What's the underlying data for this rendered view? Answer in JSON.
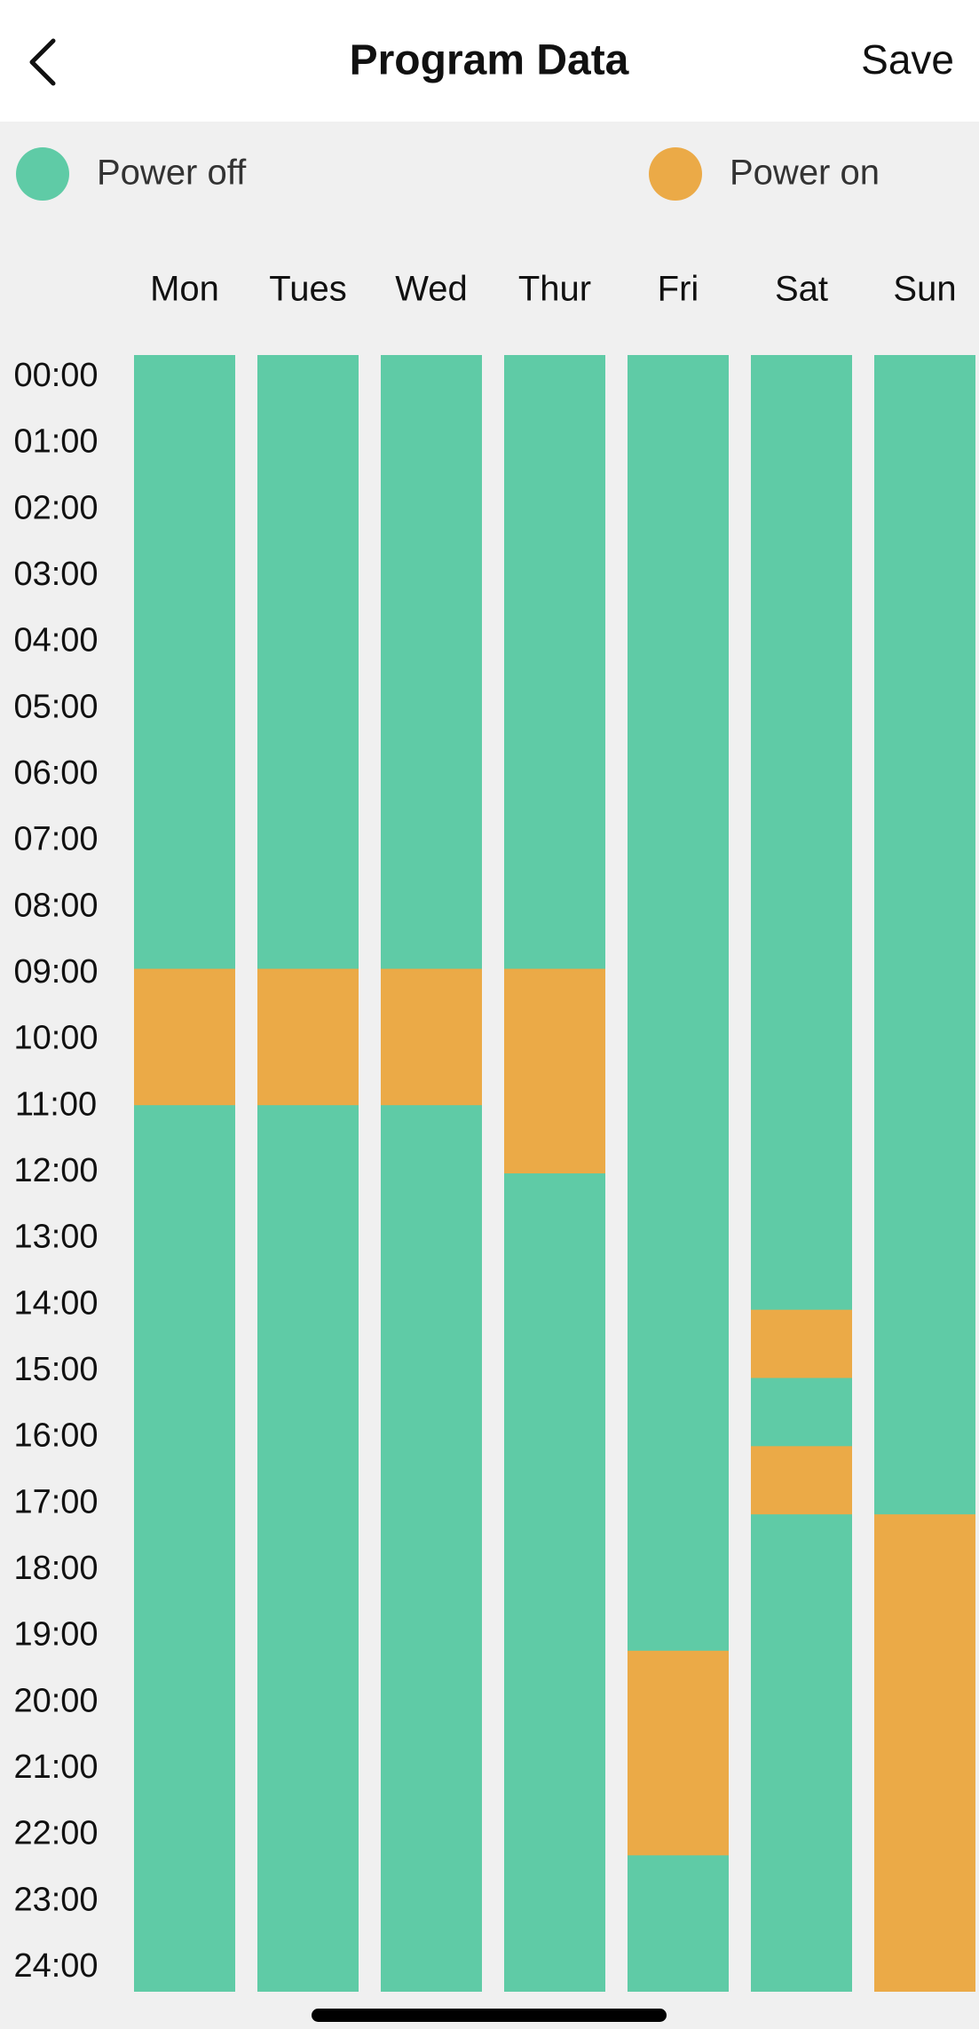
{
  "header": {
    "title": "Program Data",
    "save": "Save"
  },
  "legend": [
    {
      "label": "Power off",
      "color": "#5fcba6"
    },
    {
      "label": "Power on",
      "color": "#ebaa47"
    }
  ],
  "hour_range": [
    0,
    24
  ],
  "times": [
    "00:00",
    "01:00",
    "02:00",
    "03:00",
    "04:00",
    "05:00",
    "06:00",
    "07:00",
    "08:00",
    "09:00",
    "10:00",
    "11:00",
    "12:00",
    "13:00",
    "14:00",
    "15:00",
    "16:00",
    "17:00",
    "18:00",
    "19:00",
    "20:00",
    "21:00",
    "22:00",
    "23:00",
    "24:00"
  ],
  "days": [
    {
      "label": "Mon",
      "on": [
        [
          9,
          11
        ]
      ]
    },
    {
      "label": "Tues",
      "on": [
        [
          9,
          11
        ]
      ]
    },
    {
      "label": "Wed",
      "on": [
        [
          9,
          11
        ]
      ]
    },
    {
      "label": "Thur",
      "on": [
        [
          9,
          12
        ]
      ]
    },
    {
      "label": "Fri",
      "on": [
        [
          19,
          22
        ]
      ]
    },
    {
      "label": "Sat",
      "on": [
        [
          14,
          15
        ],
        [
          16,
          17
        ]
      ]
    },
    {
      "label": "Sun",
      "on": [
        [
          17,
          24
        ]
      ]
    }
  ]
}
